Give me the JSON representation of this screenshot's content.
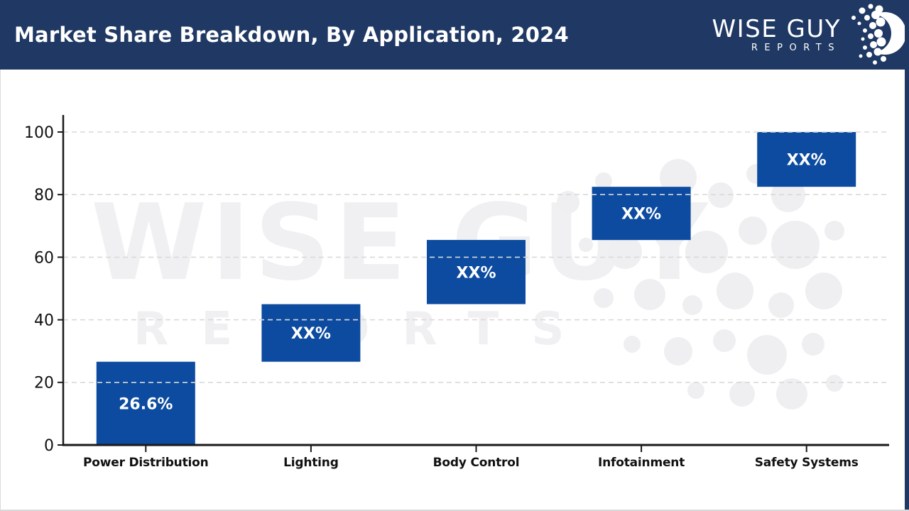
{
  "theme": {
    "header_bg": "#1F3864",
    "bar_blue": "#0C4B9F",
    "axis_color": "#1a1a1a",
    "grid_color": "#d9d9d9",
    "watermark_color": "#f0f0f3",
    "border_color": "#d9d9d9"
  },
  "header": {
    "title": "Market Share Breakdown, By Application, 2024",
    "logo": {
      "line1": "WISE GUY",
      "line2": "REPORTS"
    }
  },
  "watermark": {
    "line1": "WISE GUY",
    "line2": "REPORTS"
  },
  "chart_data": {
    "type": "bar",
    "subtype": "floating-waterfall",
    "title": "Market Share Breakdown, By Application, 2024",
    "categories": [
      "Power Distribution",
      "Lighting",
      "Body Control",
      "Infotainment",
      "Safety Systems"
    ],
    "segments": [
      {
        "category": "Power Distribution",
        "start": 0,
        "end": 26.6,
        "label": "26.6%"
      },
      {
        "category": "Lighting",
        "start": 26.6,
        "end": 45,
        "label": "XX%"
      },
      {
        "category": "Body Control",
        "start": 45,
        "end": 65.5,
        "label": "XX%"
      },
      {
        "category": "Infotainment",
        "start": 65.5,
        "end": 82.5,
        "label": "XX%"
      },
      {
        "category": "Safety Systems",
        "start": 82.5,
        "end": 100,
        "label": "XX%"
      }
    ],
    "ylim": [
      0,
      100
    ],
    "yticks": [
      0,
      20,
      40,
      60,
      80,
      100
    ],
    "xlabel": "",
    "ylabel": "",
    "grid": "horizontal-dashed-over-bars",
    "legend": false,
    "bar_color": "#0C4B9F",
    "bar_label_color": "#ffffff",
    "axis_color": "#1a1a1a",
    "grid_color": "#d9d9d9"
  }
}
